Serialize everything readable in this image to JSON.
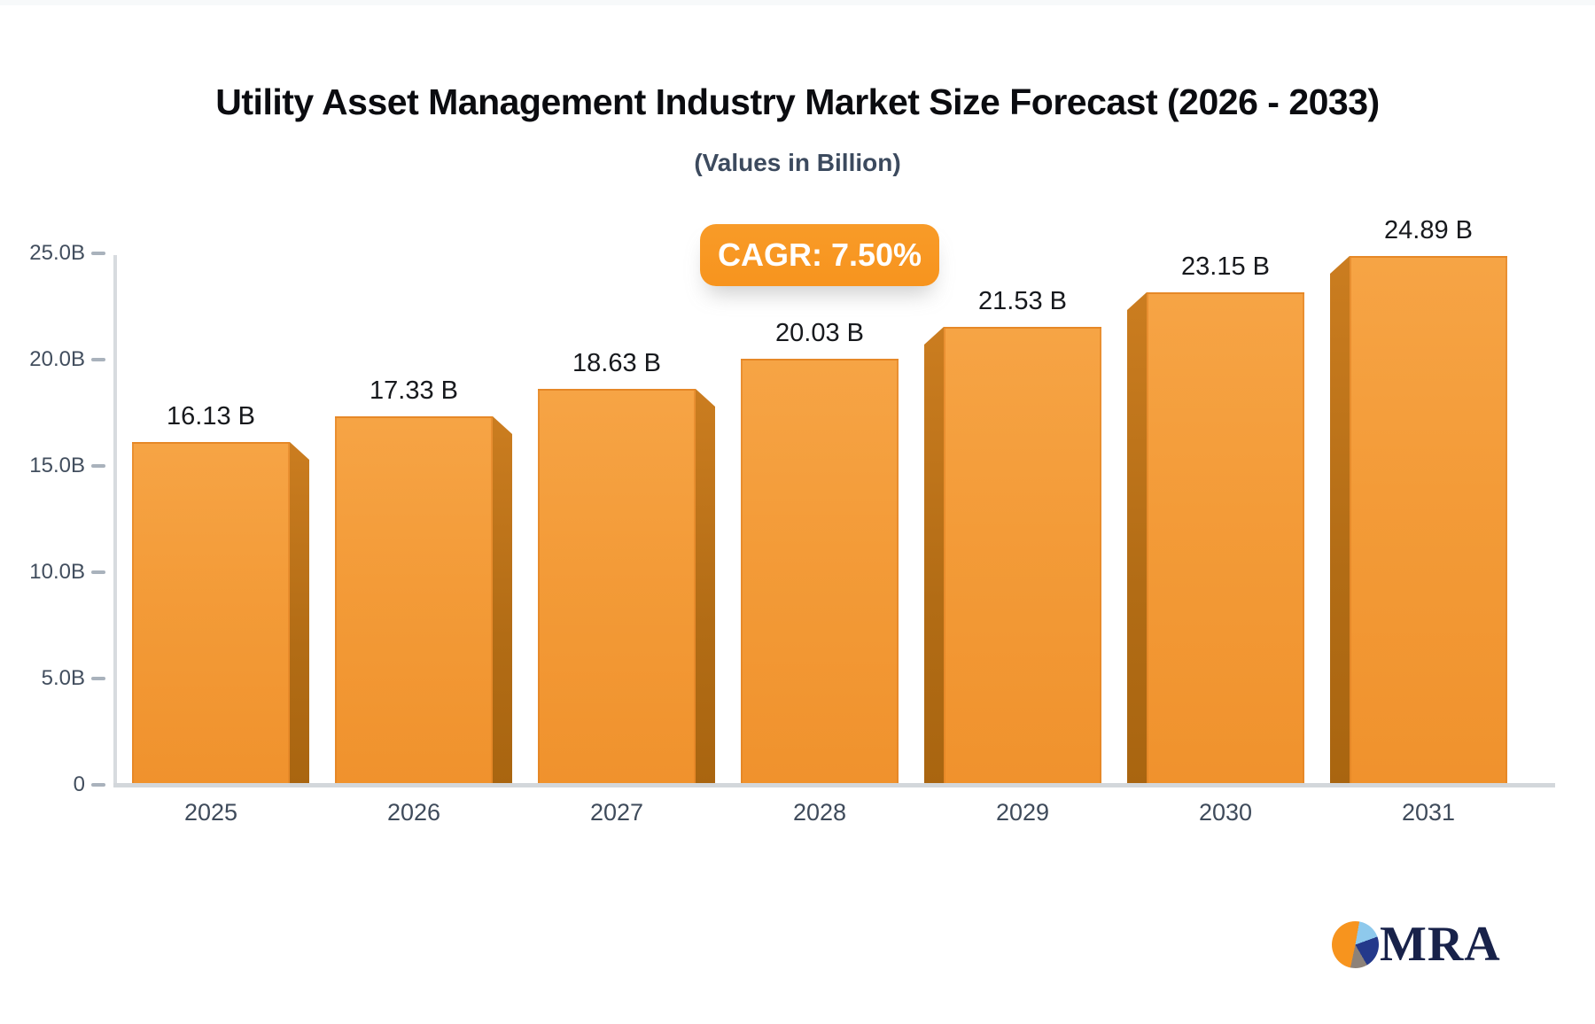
{
  "header": {
    "title": "Utility Asset Management Industry Market Size Forecast (2026 - 2033)",
    "subtitle": "(Values in Billion)"
  },
  "badge": {
    "label": "CAGR: 7.50%",
    "background": "#f7941e",
    "text_color": "#ffffff"
  },
  "chart_data": {
    "type": "bar",
    "title": "Utility Asset Management Industry Market Size Forecast (2026 - 2033)",
    "subtitle": "(Values in Billion)",
    "cagr_label": "CAGR: 7.50%",
    "categories": [
      "2025",
      "2026",
      "2027",
      "2028",
      "2029",
      "2030",
      "2031"
    ],
    "values": [
      16.13,
      17.33,
      18.63,
      20.03,
      21.53,
      23.15,
      24.89
    ],
    "value_labels": [
      "16.13 B",
      "17.33 B",
      "18.63 B",
      "20.03 B",
      "21.53 B",
      "23.15 B",
      "24.89 B"
    ],
    "unit_suffix": "B",
    "ylim": [
      0,
      25
    ],
    "yticks": [
      {
        "value": 25,
        "label": "25.0B"
      },
      {
        "value": 20,
        "label": "20.0B"
      },
      {
        "value": 15,
        "label": "15.0B"
      },
      {
        "value": 10,
        "label": "10.0B"
      },
      {
        "value": 5,
        "label": "5.0B"
      },
      {
        "value": 0,
        "label": "0"
      }
    ],
    "grid": false,
    "legend": false,
    "bar_color": "#f39b38",
    "bar_side_color": "#b26c15",
    "value_label_color": "#17191d",
    "axis_label_color": "#3f4b5b"
  },
  "logo": {
    "text": "MRA",
    "pie_slice_colors": [
      "#f7941e",
      "#8ec9ec",
      "#24398b",
      "#8d8279"
    ]
  }
}
